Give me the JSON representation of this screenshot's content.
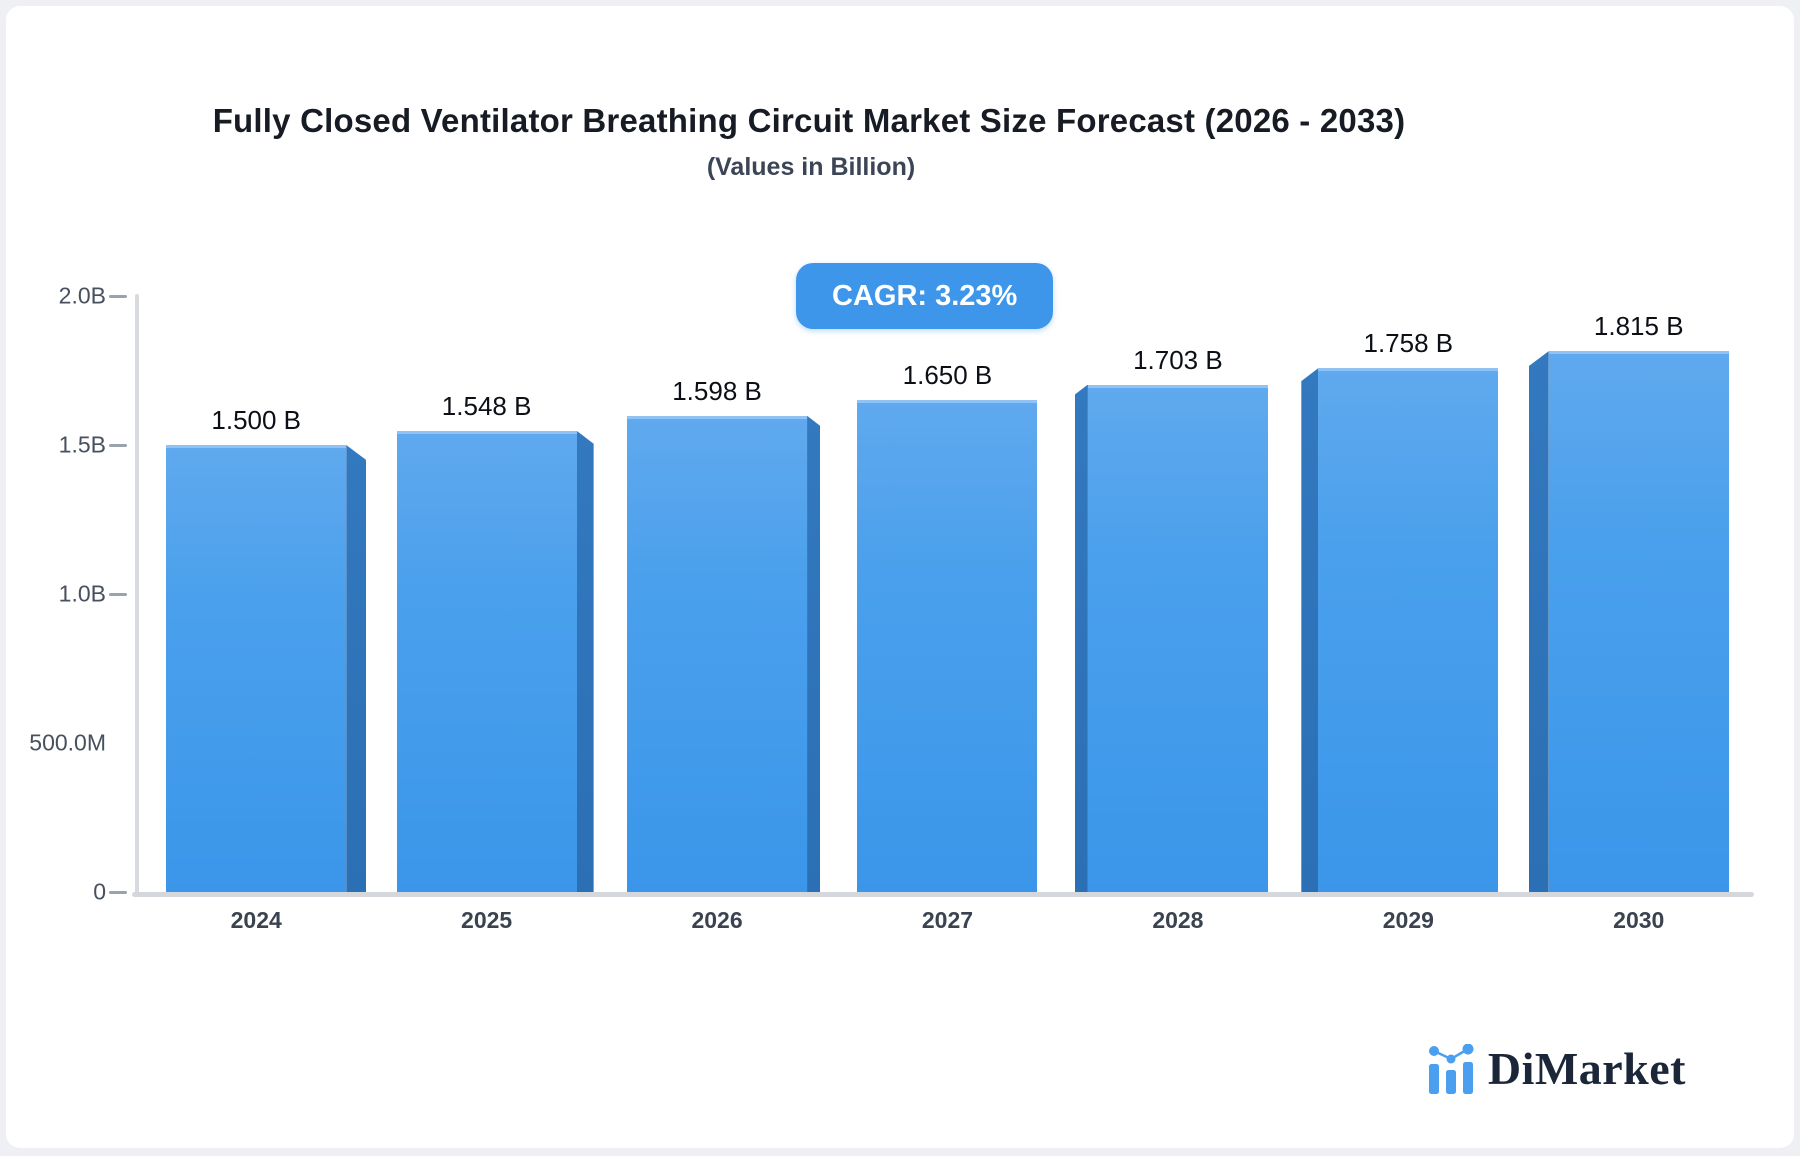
{
  "header": {
    "title": "Fully Closed Ventilator Breathing Circuit Market Size Forecast (2026 - 2033)",
    "subtitle": "(Values in Billion)"
  },
  "badge": {
    "label": "CAGR: 3.23%",
    "bg_color": "#3d96ea",
    "text_color": "#ffffff"
  },
  "chart_data": {
    "type": "bar",
    "title": "Fully Closed Ventilator Breathing Circuit Market Size Forecast (2026 - 2033)",
    "subtitle": "(Values in Billion)",
    "cagr": "3.23%",
    "categories": [
      "2024",
      "2025",
      "2026",
      "2027",
      "2028",
      "2029",
      "2030"
    ],
    "values": [
      1.5,
      1.548,
      1.598,
      1.65,
      1.703,
      1.758,
      1.815
    ],
    "value_labels": [
      "1.500 B",
      "1.548 B",
      "1.598 B",
      "1.650 B",
      "1.703 B",
      "1.758 B",
      "1.815 B"
    ],
    "unit": "Billion",
    "ylim": [
      0,
      2.0
    ],
    "yticks": [
      {
        "label": "2.0B",
        "value": 2.0,
        "dash": true
      },
      {
        "label": "1.5B",
        "value": 1.5,
        "dash": true
      },
      {
        "label": "1.0B",
        "value": 1.0,
        "dash": true
      },
      {
        "label": "500.0M",
        "value": 0.5,
        "dash": false
      },
      {
        "label": "0",
        "value": 0.0,
        "dash": true
      }
    ],
    "grid": false,
    "legend": "none",
    "colors": {
      "bar_face_top": "#60a9ee",
      "bar_face_bottom": "#3b96ea",
      "bar_side": "#2d72b7",
      "axis_line": "#d5d9dd",
      "tick": "#99a2ad",
      "value_label": "#0c0f15",
      "axis_label": "#46505e"
    }
  },
  "brand": {
    "name": "DiMarket",
    "icon": "mini-bar-line-chart-icon",
    "icon_color": "#4a9ff0",
    "text_color": "#1b2639"
  }
}
